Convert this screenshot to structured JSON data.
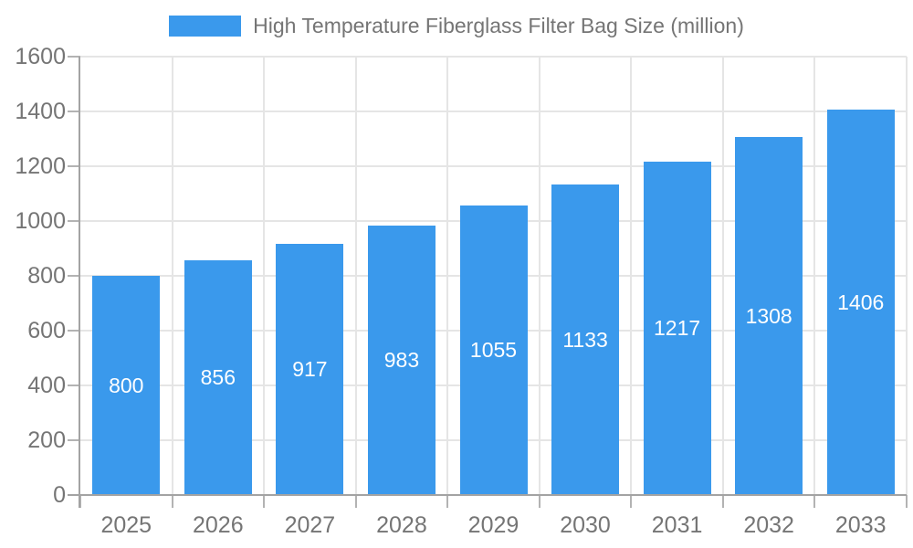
{
  "chart_data": {
    "type": "bar",
    "title": "High Temperature Fiberglass Filter Bag Size (million)",
    "categories": [
      "2025",
      "2026",
      "2027",
      "2028",
      "2029",
      "2030",
      "2031",
      "2032",
      "2033"
    ],
    "values": [
      800,
      856,
      917,
      983,
      1055,
      1133,
      1217,
      1308,
      1406
    ],
    "yticks": [
      0,
      200,
      400,
      600,
      800,
      1000,
      1200,
      1400,
      1600
    ],
    "ylim": [
      0,
      1600
    ],
    "xlabel": "",
    "ylabel": "",
    "grid": true,
    "legend_position": "top",
    "value_labels_position": "inside-center",
    "colors": {
      "bar": "#3A99EC",
      "value_text": "#FFFFFF",
      "axis_text": "#757575",
      "legend_text": "#757575",
      "grid_line": "#E5E5E5",
      "axis_line": "#A3A3A3",
      "tick_line": "#B3B3B3",
      "background": "#FFFFFF"
    }
  }
}
